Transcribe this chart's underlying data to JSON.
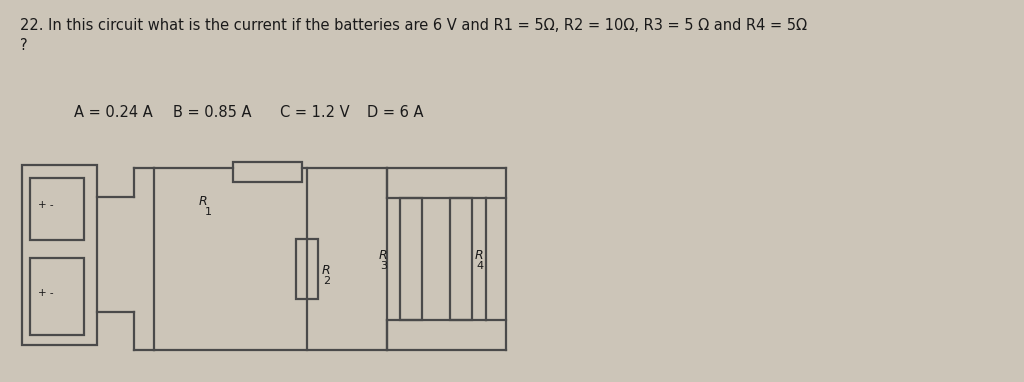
{
  "question_text": "22. In this circuit what is the current if the batteries are 6 V and R1 = 5Ω, R2 = 10Ω, R3 = 5 Ω and R4 = 5Ω",
  "question_line2": "?",
  "choices": [
    "A = 0.24 A",
    "B = 0.85 A",
    "C = 1.2 V",
    "D = 6 A"
  ],
  "bg_color": "#ccc5b8",
  "text_color": "#1a1a1a",
  "circuit_color": "#4a4a4a",
  "title_fontsize": 10.5,
  "choice_fontsize": 10.5
}
